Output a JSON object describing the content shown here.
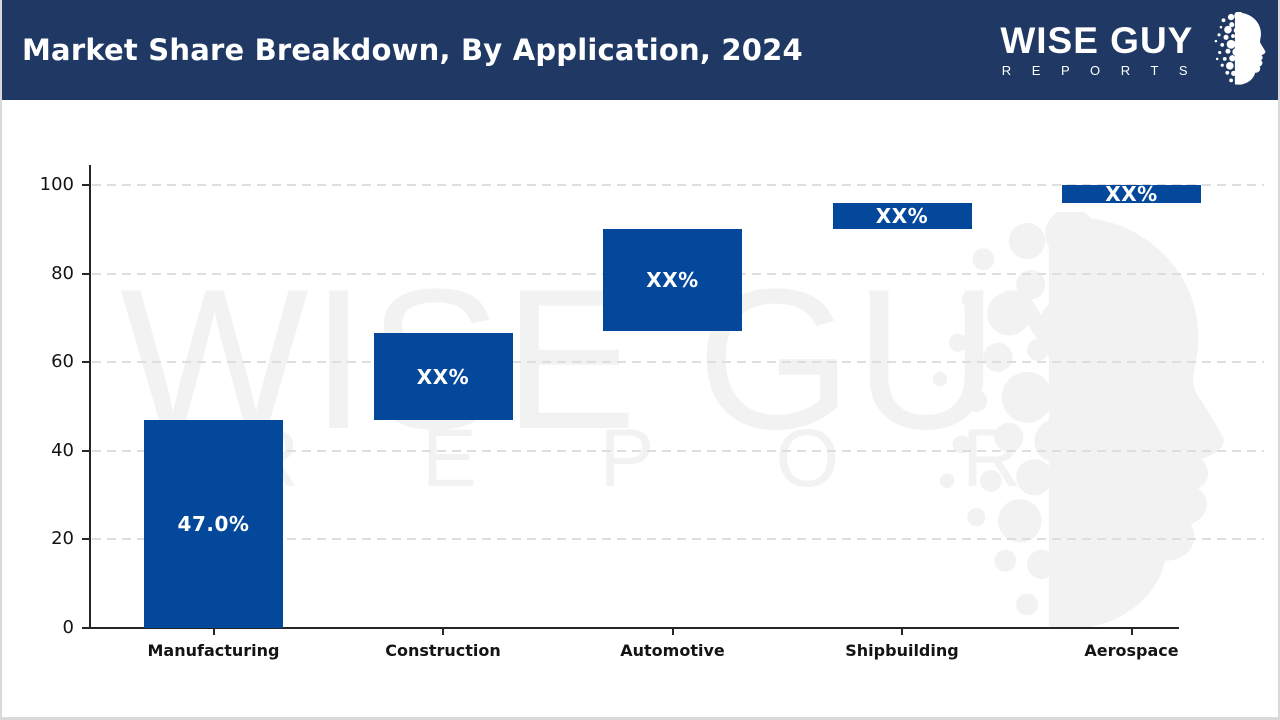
{
  "header": {
    "title": "Market Share Breakdown, By Application, 2024",
    "logo": {
      "line1": "WISE GUY",
      "line2": "R E P O R T S"
    }
  },
  "watermark": {
    "line1": "WISE GUY",
    "line2": "R E P O R T S"
  },
  "colors": {
    "header_bg": "#1f3864",
    "bar": "#04489c",
    "axis": "#262626",
    "gridline": "#dedede",
    "watermark": "#f2f2f2",
    "bar_label": "#ffffff",
    "tick_label": "#141414"
  },
  "chart_data": {
    "type": "bar",
    "subtype": "waterfall",
    "title": "Market Share Breakdown, By Application, 2024",
    "xlabel": "",
    "ylabel": "",
    "categories": [
      "Manufacturing",
      "Construction",
      "Automotive",
      "Shipbuilding",
      "Aerospace"
    ],
    "segments": [
      {
        "category": "Manufacturing",
        "start": 0,
        "end": 47,
        "label": "47.0%"
      },
      {
        "category": "Construction",
        "start": 47,
        "end": 66.5,
        "label": "XX%"
      },
      {
        "category": "Automotive",
        "start": 67,
        "end": 90,
        "label": "XX%"
      },
      {
        "category": "Shipbuilding",
        "start": 90,
        "end": 96,
        "label": "XX%"
      },
      {
        "category": "Aerospace",
        "start": 96,
        "end": 100,
        "label": "XX%"
      }
    ],
    "yticks": [
      0,
      20,
      40,
      60,
      80,
      100
    ],
    "ylim": [
      0,
      100
    ],
    "grid": "dashed-horizontal",
    "legend": "none"
  }
}
